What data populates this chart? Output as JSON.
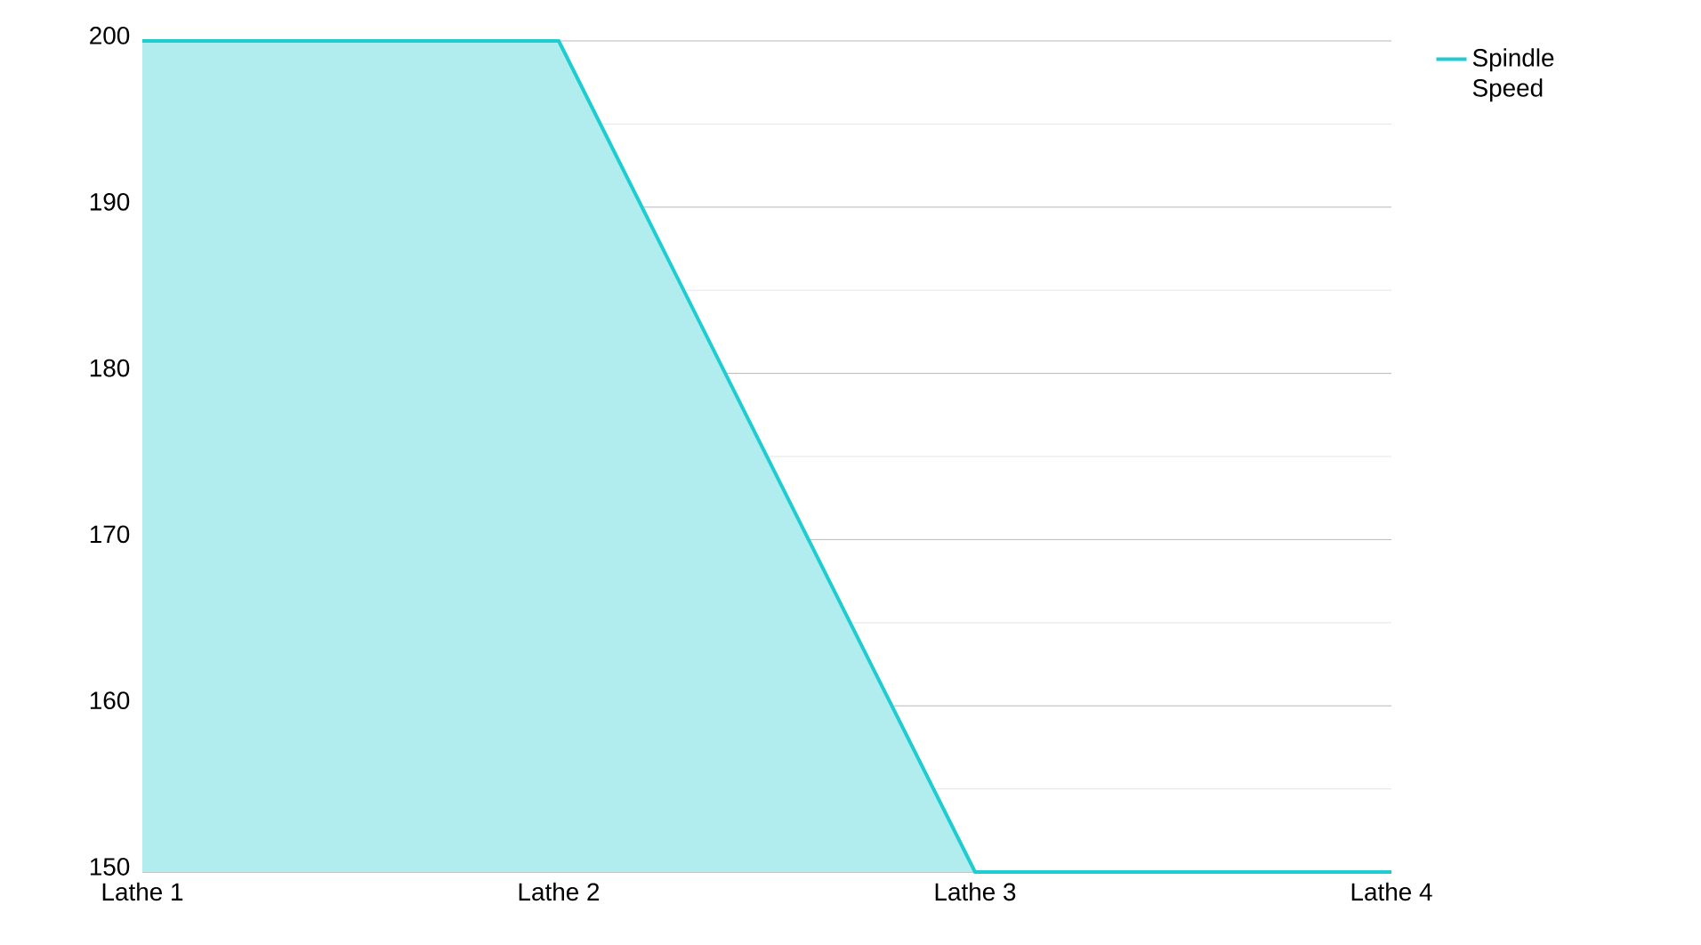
{
  "chart_data": {
    "type": "area",
    "categories": [
      "Lathe 1",
      "Lathe 2",
      "Lathe 3",
      "Lathe 4"
    ],
    "series": [
      {
        "name": "Spindle Speed",
        "color": "#1fcdd1",
        "values": [
          200,
          200,
          150,
          150
        ]
      }
    ],
    "ylim": [
      150,
      200
    ],
    "yticks": [
      150,
      {
        "value": 155,
        "label": null
      },
      160,
      {
        "value": 165,
        "label": null
      },
      170,
      {
        "value": 175,
        "label": null
      },
      180,
      {
        "value": 185,
        "label": null
      },
      190,
      {
        "value": 195,
        "label": null
      },
      200
    ],
    "grid": "y",
    "legend": "top right"
  }
}
